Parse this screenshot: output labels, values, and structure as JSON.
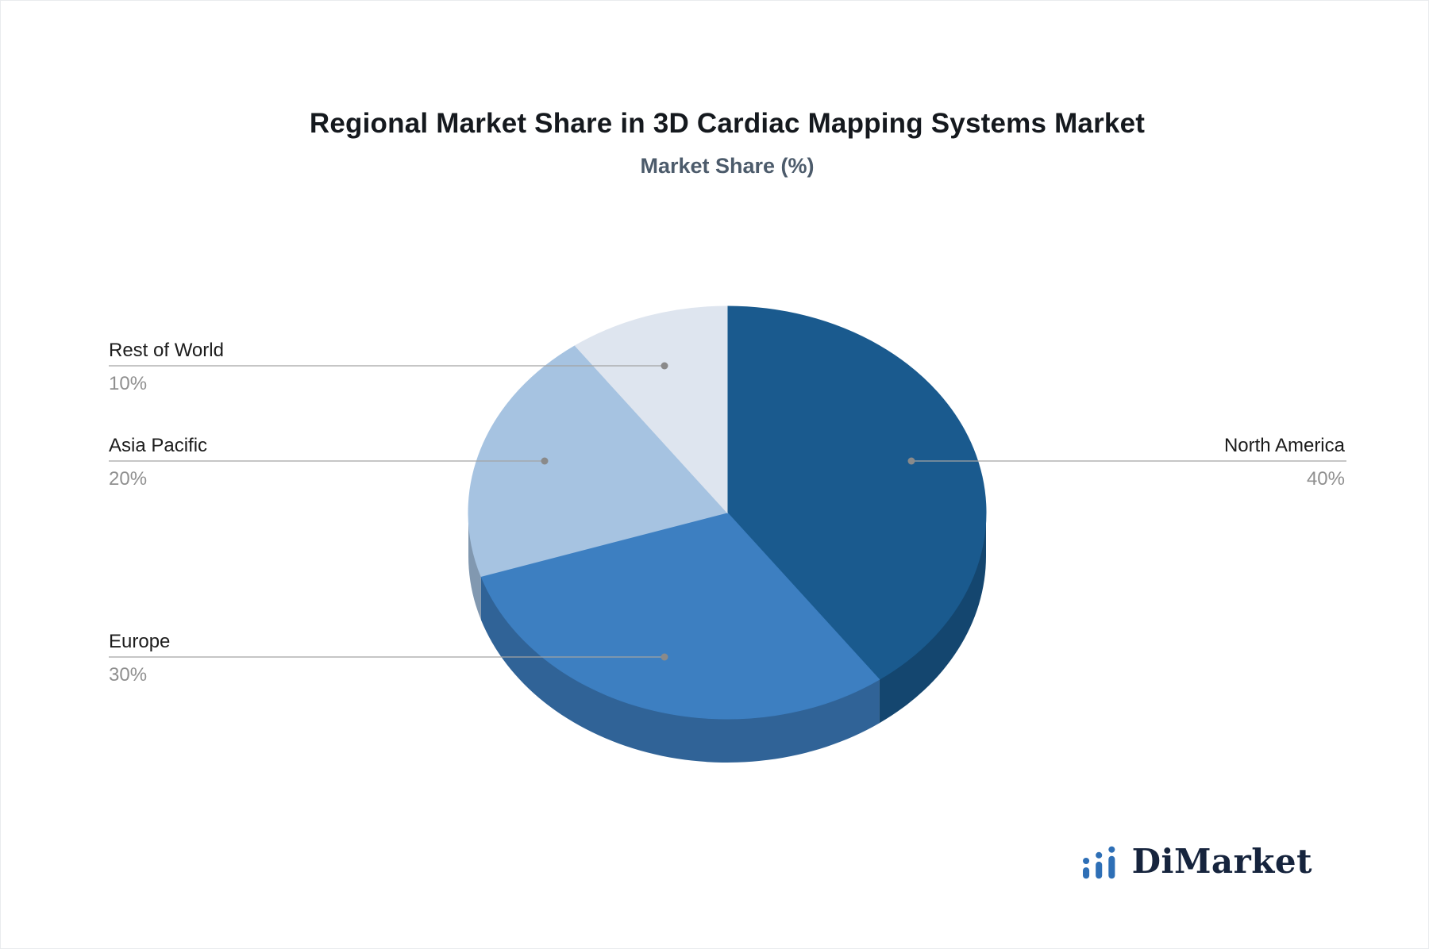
{
  "chart_data": {
    "type": "pie",
    "style": "3d",
    "title": "Regional Market Share in 3D Cardiac Mapping Systems Market",
    "subtitle": "Market Share (%)",
    "unit": "%",
    "categories": [
      "North America",
      "Europe",
      "Asia Pacific",
      "Rest of World"
    ],
    "values": [
      40,
      30,
      20,
      10
    ],
    "colors": [
      "#1a5a8e",
      "#3d7fc1",
      "#a6c3e1",
      "#dee5ef"
    ],
    "start_angle_deg": -90,
    "direction": "clockwise",
    "legend_position": "none",
    "labels": [
      {
        "name": "North America",
        "value_label": "40%"
      },
      {
        "name": "Europe",
        "value_label": "30%"
      },
      {
        "name": "Asia Pacific",
        "value_label": "20%"
      },
      {
        "name": "Rest of World",
        "value_label": "10%"
      }
    ]
  },
  "logo": {
    "text": "DiMarket",
    "accent_color": "#2e6fb6",
    "text_color": "#16243d"
  }
}
